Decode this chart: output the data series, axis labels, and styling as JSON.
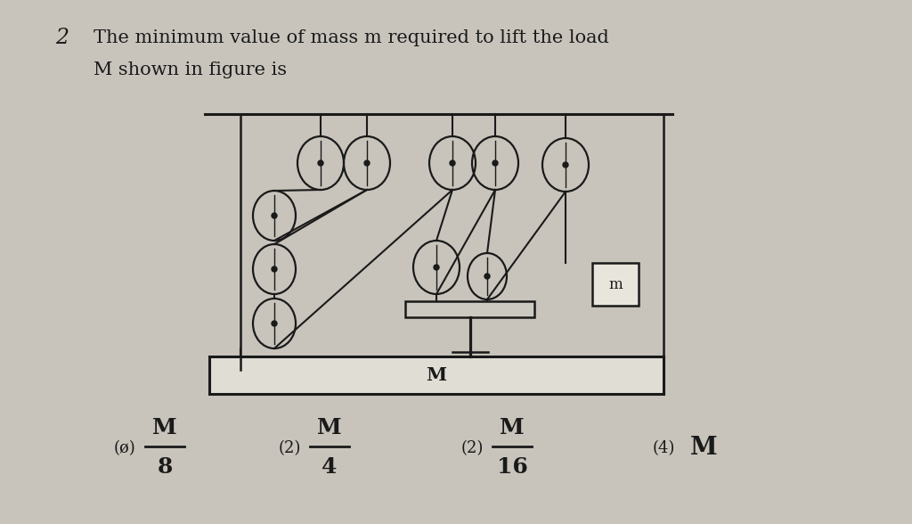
{
  "title_line1": "The minimum value of mass m required to lift the load",
  "title_line2": "M shown in figure is",
  "question_number": "2",
  "bg_color": "#c8c4bc",
  "text_color": "#1a1a1a",
  "diagram_bg": "#dddad2",
  "fig_width": 10.24,
  "fig_height": 5.88,
  "dpi": 100,
  "options": [
    {
      "prefix": "(ø)",
      "numerator": "M",
      "denominator": "8",
      "struck": true
    },
    {
      "prefix": "(2)",
      "numerator": "M",
      "denominator": "4",
      "struck": false
    },
    {
      "prefix": "(2)",
      "numerator": "M",
      "denominator": "16",
      "struck": false
    },
    {
      "prefix": "(4)",
      "plain": "M",
      "struck": false
    }
  ]
}
